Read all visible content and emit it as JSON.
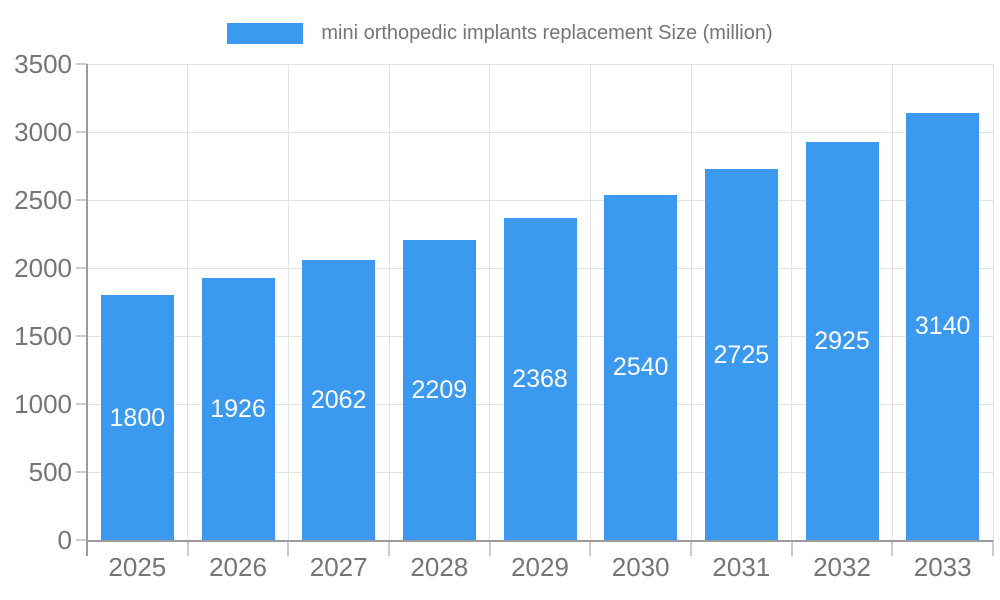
{
  "legend": {
    "label": "mini orthopedic implants replacement Size (million)"
  },
  "chart_data": {
    "type": "bar",
    "title": "mini orthopedic implants replacement Size (million)",
    "categories": [
      "2025",
      "2026",
      "2027",
      "2028",
      "2029",
      "2030",
      "2031",
      "2032",
      "2033"
    ],
    "values": [
      1800,
      1926,
      2062,
      2209,
      2368,
      2540,
      2725,
      2925,
      3140
    ],
    "yticks": [
      0,
      500,
      1000,
      1500,
      2000,
      2500,
      3000,
      3500
    ],
    "ylim": [
      0,
      3500
    ],
    "xlabel": "",
    "ylabel": "",
    "grid": true,
    "legend_position": "top",
    "bar_color": "#3b99f0",
    "bar_label_color": "#ffffff",
    "axis_text_color": "#757575",
    "axis_line_color": "#9b9b9b",
    "gridline_color": "#e3e3e3"
  }
}
